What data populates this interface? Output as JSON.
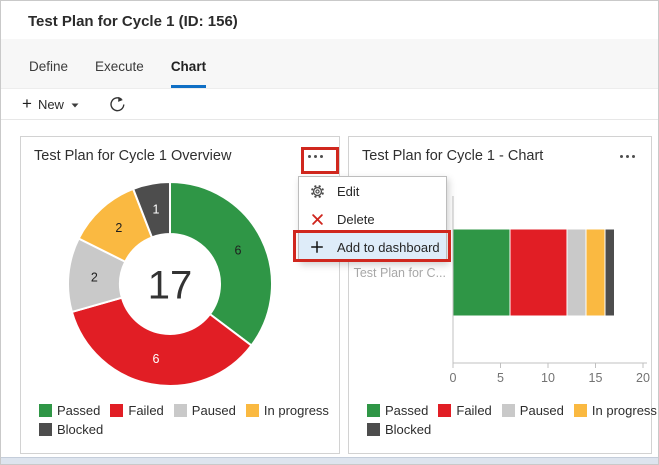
{
  "window": {
    "title": "Test Plan for Cycle 1 (ID: 156)"
  },
  "tabs": [
    {
      "label": "Define",
      "active": false
    },
    {
      "label": "Execute",
      "active": false
    },
    {
      "label": "Chart",
      "active": true
    }
  ],
  "toolbar": {
    "new_label": "New"
  },
  "colors": {
    "accent_blue": "#0F6FC5",
    "annotation_red": "#D0271E",
    "menu_highlight": "#DEECF9",
    "passed": "#2F9646",
    "failed": "#E11E25",
    "paused": "#C9C9C9",
    "in_progress": "#FAB941",
    "blocked": "#4D4D4D"
  },
  "cards": [
    {
      "title": "Test Plan for Cycle 1 Overview"
    },
    {
      "title": "Test Plan for Cycle 1 - Chart"
    }
  ],
  "menu": {
    "items": [
      {
        "label": "Edit",
        "icon": "gear",
        "highlighted": false
      },
      {
        "label": "Delete",
        "icon": "x",
        "highlighted": false
      },
      {
        "label": "Add to dashboard",
        "icon": "plus",
        "highlighted": true
      }
    ]
  },
  "legend": [
    {
      "label": "Passed",
      "color": "#2F9646"
    },
    {
      "label": "Failed",
      "color": "#E11E25"
    },
    {
      "label": "Paused",
      "color": "#C9C9C9"
    },
    {
      "label": "In progress",
      "color": "#FAB941"
    },
    {
      "label": "Blocked",
      "color": "#4D4D4D"
    }
  ],
  "chart_data": [
    {
      "type": "pie",
      "subtype": "donut",
      "title": "Test Plan for Cycle 1 Overview",
      "center_label": "17",
      "total": 17,
      "legend_position": "bottom",
      "series": [
        {
          "name": "Passed",
          "value": 6,
          "color": "#2F9646",
          "label_color": "#1e1e1e"
        },
        {
          "name": "Failed",
          "value": 6,
          "color": "#E11E25",
          "label_color": "#ffffff"
        },
        {
          "name": "Paused",
          "value": 2,
          "color": "#C9C9C9",
          "label_color": "#1e1e1e"
        },
        {
          "name": "In progress",
          "value": 2,
          "color": "#FAB941",
          "label_color": "#1e1e1e"
        },
        {
          "name": "Blocked",
          "value": 1,
          "color": "#4D4D4D",
          "label_color": "#ffffff"
        }
      ]
    },
    {
      "type": "bar",
      "subtype": "horizontal_stacked",
      "title": "Test Plan for Cycle 1 - Chart",
      "category": "Test Plan for C...",
      "x_ticks": [
        0,
        5,
        10,
        15,
        20
      ],
      "xlim": [
        0,
        20
      ],
      "grid": false,
      "legend_position": "bottom",
      "series": [
        {
          "name": "Passed",
          "value": 6,
          "color": "#2F9646"
        },
        {
          "name": "Failed",
          "value": 6,
          "color": "#E11E25"
        },
        {
          "name": "Paused",
          "value": 2,
          "color": "#C9C9C9"
        },
        {
          "name": "In progress",
          "value": 2,
          "color": "#FAB941"
        },
        {
          "name": "Blocked",
          "value": 1,
          "color": "#4D4D4D"
        }
      ]
    }
  ]
}
